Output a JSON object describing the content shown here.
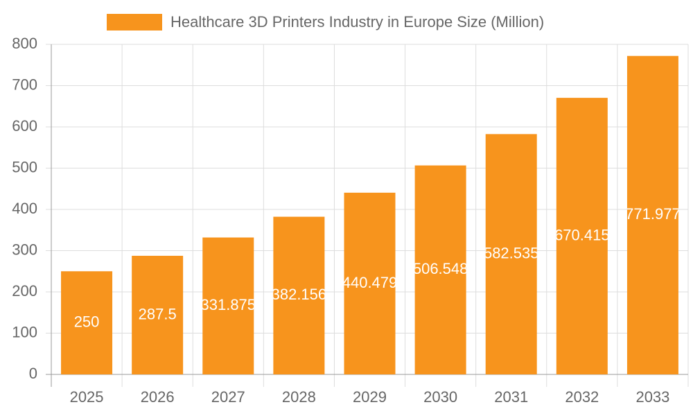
{
  "chart_data": {
    "type": "bar",
    "series": [
      {
        "name": "Healthcare 3D Printers Industry in Europe Size (Million)",
        "color": "#f7941d",
        "values": [
          250,
          287.5,
          331.875,
          382.156,
          440.479,
          506.548,
          582.535,
          670.415,
          771.977
        ]
      }
    ],
    "categories": [
      "2025",
      "2026",
      "2027",
      "2028",
      "2029",
      "2030",
      "2031",
      "2032",
      "2033"
    ],
    "ylim": [
      0,
      800
    ],
    "yticks": [
      0,
      100,
      200,
      300,
      400,
      500,
      600,
      700,
      800
    ],
    "grid": true
  }
}
